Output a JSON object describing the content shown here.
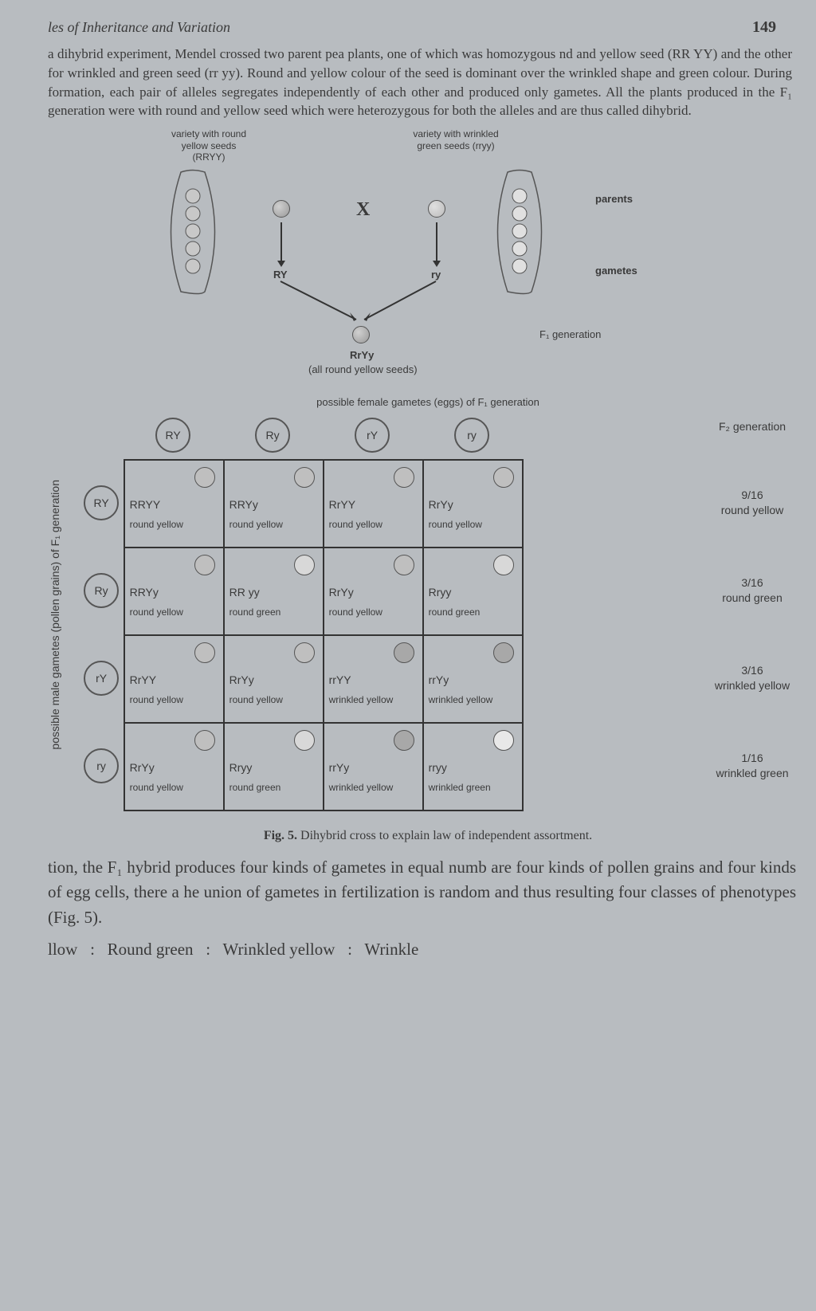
{
  "page": {
    "chapter_title": "les of Inheritance and Variation",
    "page_number": "149"
  },
  "intro": {
    "paragraph": "a dihybrid experiment, Mendel crossed two parent pea plants, one of which was homozygous nd and yellow seed (RR YY) and the other for wrinkled and green seed (rr yy). Round and yellow colour of the seed is dominant over the wrinkled shape and green colour. During formation, each pair of alleles segregates independently of each other and produced only gametes. All the plants produced in the F₁ generation were with round and yellow seed which were heterozygous for both the alleles and are thus called dihybrid."
  },
  "cross": {
    "variety1": "variety with\nround yellow\nseeds (RRYY)",
    "variety2": "variety with\nwrinkled green\nseeds (rryy)",
    "parents_label": "parents",
    "gametes_label": "gametes",
    "gamete1": "RY",
    "gamete2": "ry",
    "f1_genotype": "RrYy",
    "f1_caption": "(all round yellow seeds)",
    "f1_label": "F₁ generation",
    "female_caption": "possible female gametes (eggs) of F₁ generation",
    "f2_label": "F₂ generation"
  },
  "punnett": {
    "male_label": "possible male gametes (pollen grains) of F₁ generation",
    "col_gametes": [
      "RY",
      "Ry",
      "rY",
      "ry"
    ],
    "row_gametes": [
      "RY",
      "Ry",
      "rY",
      "ry"
    ],
    "cells": [
      [
        {
          "g": "RRYY",
          "p": "round yellow",
          "c": "#bfbfbf"
        },
        {
          "g": "RRYy",
          "p": "round yellow",
          "c": "#bfbfbf"
        },
        {
          "g": "RrYY",
          "p": "round yellow",
          "c": "#bfbfbf"
        },
        {
          "g": "RrYy",
          "p": "round yellow",
          "c": "#bfbfbf"
        }
      ],
      [
        {
          "g": "RRYy",
          "p": "round yellow",
          "c": "#bfbfbf"
        },
        {
          "g": "RR yy",
          "p": "round green",
          "c": "#d8d8d8"
        },
        {
          "g": "RrYy",
          "p": "round yellow",
          "c": "#bfbfbf"
        },
        {
          "g": "Rryy",
          "p": "round green",
          "c": "#d8d8d8"
        }
      ],
      [
        {
          "g": "RrYY",
          "p": "round yellow",
          "c": "#bfbfbf"
        },
        {
          "g": "RrYy",
          "p": "round yellow",
          "c": "#bfbfbf"
        },
        {
          "g": "rrYY",
          "p": "wrinkled yellow",
          "c": "#a8a8a8"
        },
        {
          "g": "rrYy",
          "p": "wrinkled yellow",
          "c": "#a8a8a8"
        }
      ],
      [
        {
          "g": "RrYy",
          "p": "round yellow",
          "c": "#bfbfbf"
        },
        {
          "g": "Rryy",
          "p": "round green",
          "c": "#d8d8d8"
        },
        {
          "g": "rrYy",
          "p": "wrinkled yellow",
          "c": "#a8a8a8"
        },
        {
          "g": "rryy",
          "p": "wrinkled green",
          "c": "#e8e8e8"
        }
      ]
    ],
    "ratios": [
      {
        "frac": "9/16",
        "label": "round yellow"
      },
      {
        "frac": "3/16",
        "label": "round green"
      },
      {
        "frac": "3/16",
        "label": "wrinkled yellow"
      },
      {
        "frac": "1/16",
        "label": "wrinkled green"
      }
    ]
  },
  "figure": {
    "caption_prefix": "Fig. 5.",
    "caption_text": "Dihybrid cross to explain law of independent assortment."
  },
  "after": {
    "text": "tion, the F₁ hybrid produces four kinds of gametes in equal numb are four kinds of pollen grains and four kinds of egg cells, there a he union of gametes in fertilization is random and thus resulting four classes of phenotypes (Fig. 5).",
    "bottom": "llow   :   Round green   :   Wrinkled yellow   :   Wrinkle"
  },
  "colors": {
    "page_bg": "#b8bcc0",
    "text": "#3a3a3a",
    "border": "#333333"
  }
}
